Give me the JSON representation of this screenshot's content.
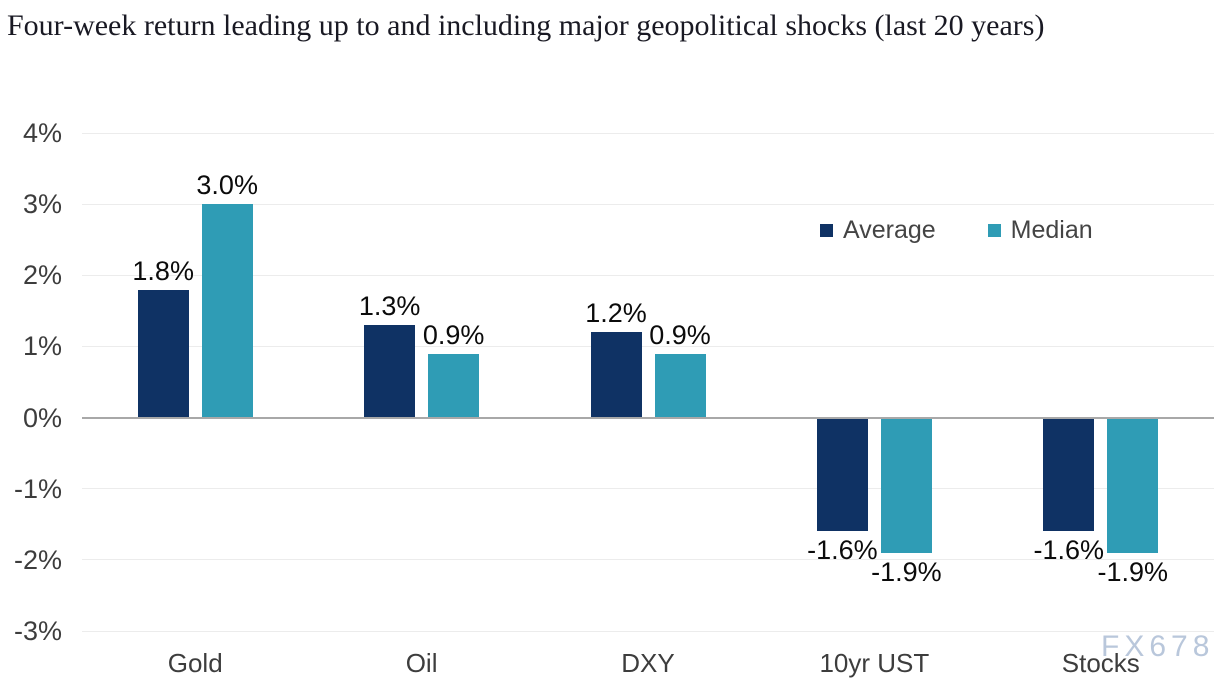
{
  "watermark": "FX678",
  "chart_data": {
    "type": "bar",
    "title": "Four-week return leading up to and including major geopolitical shocks (last 20 years)",
    "categories": [
      "Gold",
      "Oil",
      "DXY",
      "10yr UST",
      "Stocks"
    ],
    "series": [
      {
        "name": "Average",
        "color": "#0f3264",
        "values": [
          1.8,
          1.3,
          1.2,
          -1.6,
          -1.6
        ],
        "data_labels": [
          "1.8%",
          "1.3%",
          "1.2%",
          "-1.6%",
          "-1.6%"
        ]
      },
      {
        "name": "Median",
        "color": "#2f9cb5",
        "values": [
          3.0,
          0.9,
          0.9,
          -1.9,
          -1.9
        ],
        "data_labels": [
          "3.0%",
          "0.9%",
          "0.9%",
          "-1.9%",
          "-1.9%"
        ]
      }
    ],
    "ylim": [
      -3,
      4
    ],
    "y_ticks": [
      {
        "value": 4,
        "label": "4%"
      },
      {
        "value": 3,
        "label": "3%"
      },
      {
        "value": 2,
        "label": "2%"
      },
      {
        "value": 1,
        "label": "1%"
      },
      {
        "value": 0,
        "label": "0%"
      },
      {
        "value": -1,
        "label": "-1%"
      },
      {
        "value": -2,
        "label": "-2%"
      },
      {
        "value": -3,
        "label": "-3%"
      }
    ],
    "grid": true,
    "legend_position": "upper-right-inside",
    "colors": {
      "grid": "#ececec",
      "zero_line": "#a8a8a8",
      "axis_text": "#3d3d3d",
      "data_label": "#0b0b0b",
      "title": "#191923",
      "watermark": "#b9c7db"
    }
  }
}
